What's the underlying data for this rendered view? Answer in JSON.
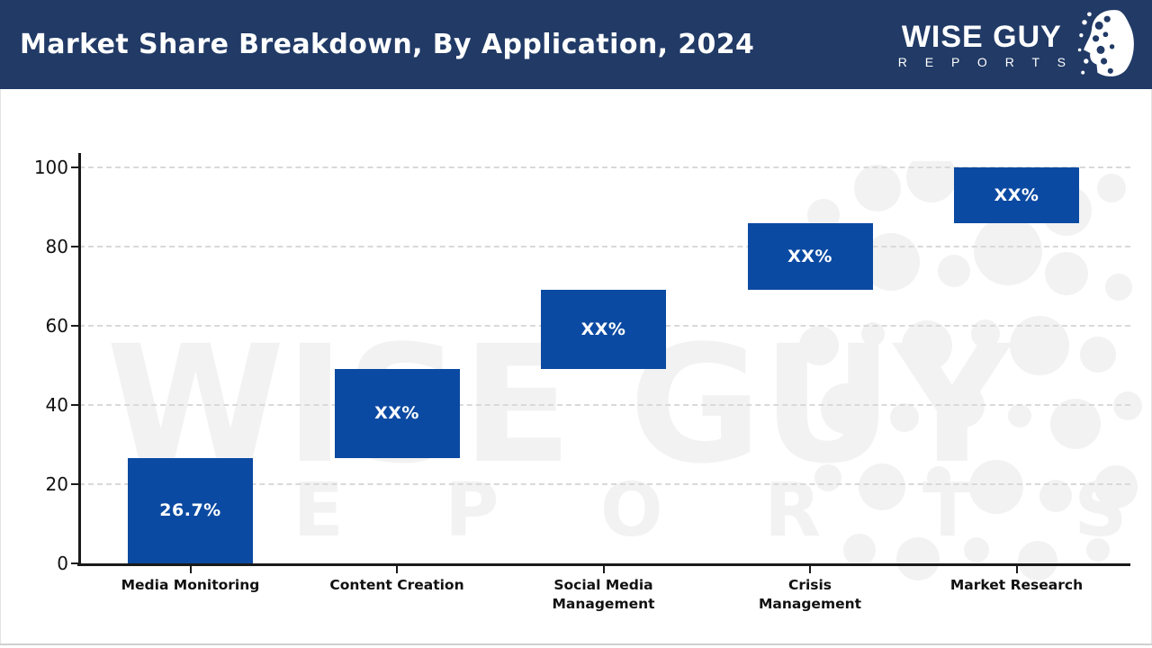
{
  "header": {
    "title": "Market Share Breakdown, By Application, 2024",
    "logo": {
      "brand": "WISE GUY",
      "sub": "R E P O R T S"
    }
  },
  "watermark": {
    "brand": "WISE GUY",
    "sub": "R E P O R T S"
  },
  "colors": {
    "header_bg": "#213a66",
    "title_text": "#ffffff",
    "bar_fill": "#0b4aa2",
    "bar_label": "#ffffff",
    "watermark": "#f2f2f2",
    "gridline": "#d9d9d9",
    "axis": "#1a1a1a",
    "tick_label": "#111111",
    "bottom_rule": "#d0d0d0"
  },
  "chart_data": {
    "type": "bar",
    "subtype": "waterfall",
    "title": "Market Share Breakdown, By Application, 2024",
    "categories": [
      "Media Monitoring",
      "Content Creation",
      "Social Media Management",
      "Crisis Management",
      "Market Research"
    ],
    "bars": [
      {
        "category": "Media Monitoring",
        "start": 0,
        "end": 26.7,
        "label": "26.7%"
      },
      {
        "category": "Content Creation",
        "start": 26.7,
        "end": 49,
        "label": "XX%"
      },
      {
        "category": "Social Media Management",
        "start": 49,
        "end": 69,
        "label": "XX%"
      },
      {
        "category": "Crisis Management",
        "start": 69,
        "end": 86,
        "label": "XX%"
      },
      {
        "category": "Market Research",
        "start": 86,
        "end": 100,
        "label": "XX%"
      }
    ],
    "yticks": [
      0,
      20,
      40,
      60,
      80,
      100
    ],
    "ylim": [
      0,
      103.5
    ],
    "xlabel": "",
    "ylabel": "",
    "grid": "dashed-horizontal",
    "legend": "none",
    "bar_color": "#0b4aa2",
    "value_label_color": "#ffffff"
  }
}
